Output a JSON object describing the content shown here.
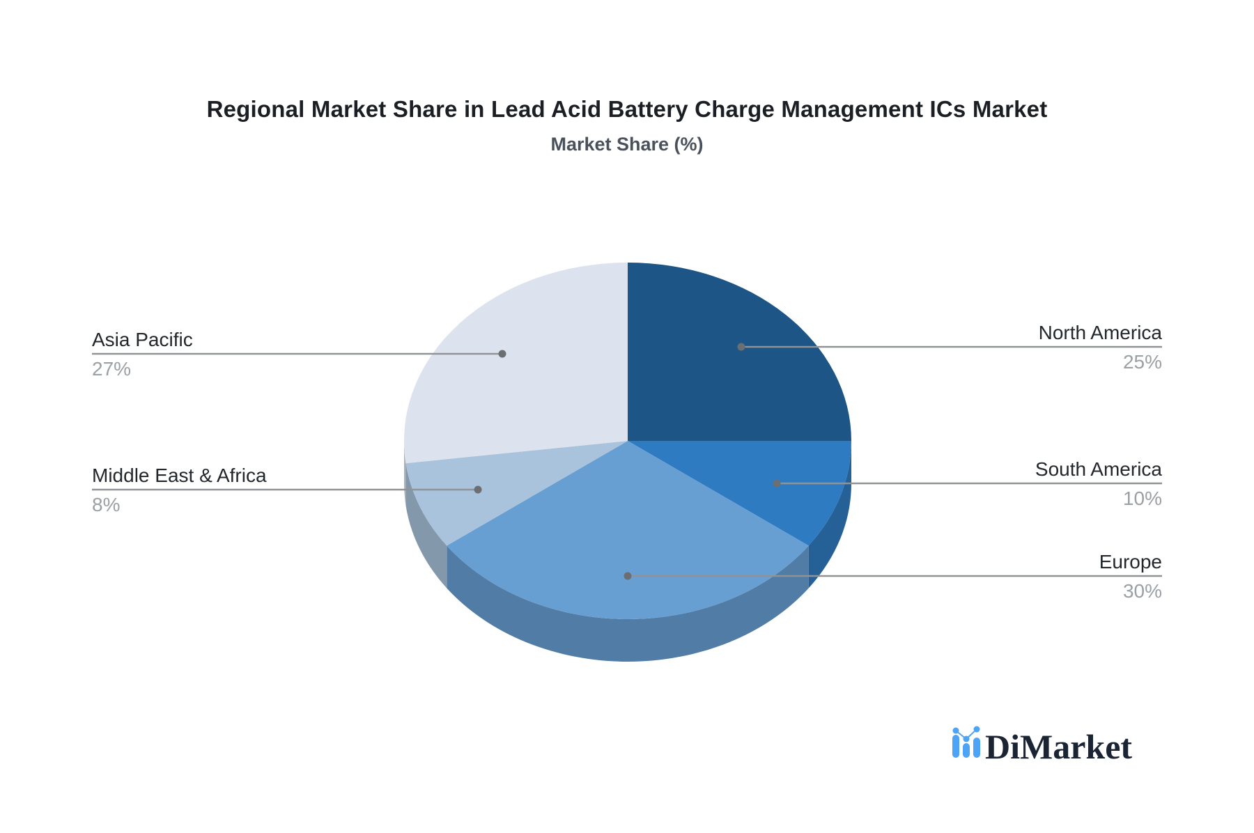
{
  "title": "Regional Market Share in Lead Acid Battery Charge Management ICs Market",
  "subtitle": "Market Share (%)",
  "brand": {
    "name": "DiMarket",
    "icon": "bar-line-chart-logo-icon",
    "icon_color": "#4da3f5",
    "text_color": "#1a2433"
  },
  "style": {
    "background": "#ffffff",
    "title_color": "#1b1f24",
    "subtitle_color": "#49525c",
    "leader_line_color": "#909396",
    "leader_dot_color": "#6b6f72",
    "label_color": "#23272b",
    "value_color": "#9ba0a5"
  },
  "chart_data": {
    "type": "pie",
    "style_3d": true,
    "title": "Regional Market Share in Lead Acid Battery Charge Management ICs Market",
    "subtitle": "Market Share (%)",
    "unit": "%",
    "start_angle_deg_clockwise_from_top": 0,
    "legend_position": "outside-leader-lines",
    "slices": [
      {
        "label": "North America",
        "value": 25,
        "value_label": "25%",
        "color": "#1c5586",
        "label_side": "right"
      },
      {
        "label": "South America",
        "value": 10,
        "value_label": "10%",
        "color": "#2f7bc1",
        "label_side": "right"
      },
      {
        "label": "Europe",
        "value": 30,
        "value_label": "30%",
        "color": "#689fd3",
        "label_side": "right"
      },
      {
        "label": "Middle East & Africa",
        "value": 8,
        "value_label": "8%",
        "color": "#a9c3dc",
        "label_side": "left"
      },
      {
        "label": "Asia Pacific",
        "value": 27,
        "value_label": "27%",
        "color": "#dde3ee",
        "label_side": "left"
      }
    ]
  }
}
